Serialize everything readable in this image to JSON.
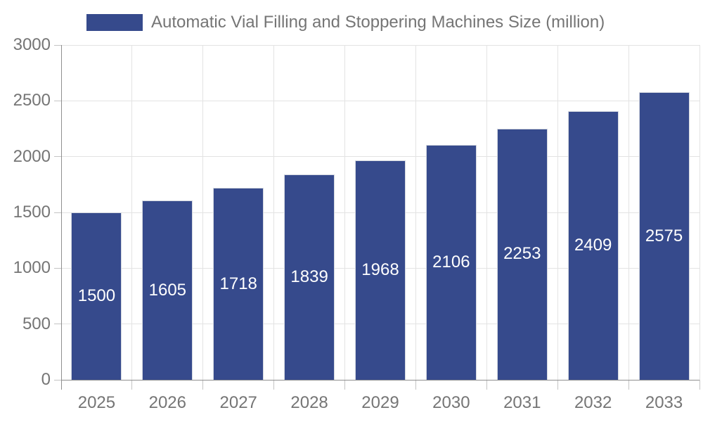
{
  "chart_data": {
    "type": "bar",
    "title": "Automatic Vial Filling and Stoppering Machines Size (million)",
    "categories": [
      "2025",
      "2026",
      "2027",
      "2028",
      "2029",
      "2030",
      "2031",
      "2032",
      "2033"
    ],
    "values": [
      1500,
      1605,
      1718,
      1839,
      1968,
      2106,
      2253,
      2409,
      2575
    ],
    "xlabel": "",
    "ylabel": "",
    "ylim": [
      0,
      3000
    ],
    "yticks": [
      0,
      500,
      1000,
      1500,
      2000,
      2500,
      3000
    ],
    "grid": true,
    "legend_position": "top",
    "bar_color": "#364A8C",
    "bar_border_color": "#D4D8E0",
    "value_label_color": "#FFFFFF",
    "axis_text_color": "#757575",
    "gridline_color": "#E3E3E3",
    "axis_line_color": "#8F8F8F",
    "tick_color": "#C4C4C4",
    "background_color": "#FFFFFF"
  }
}
